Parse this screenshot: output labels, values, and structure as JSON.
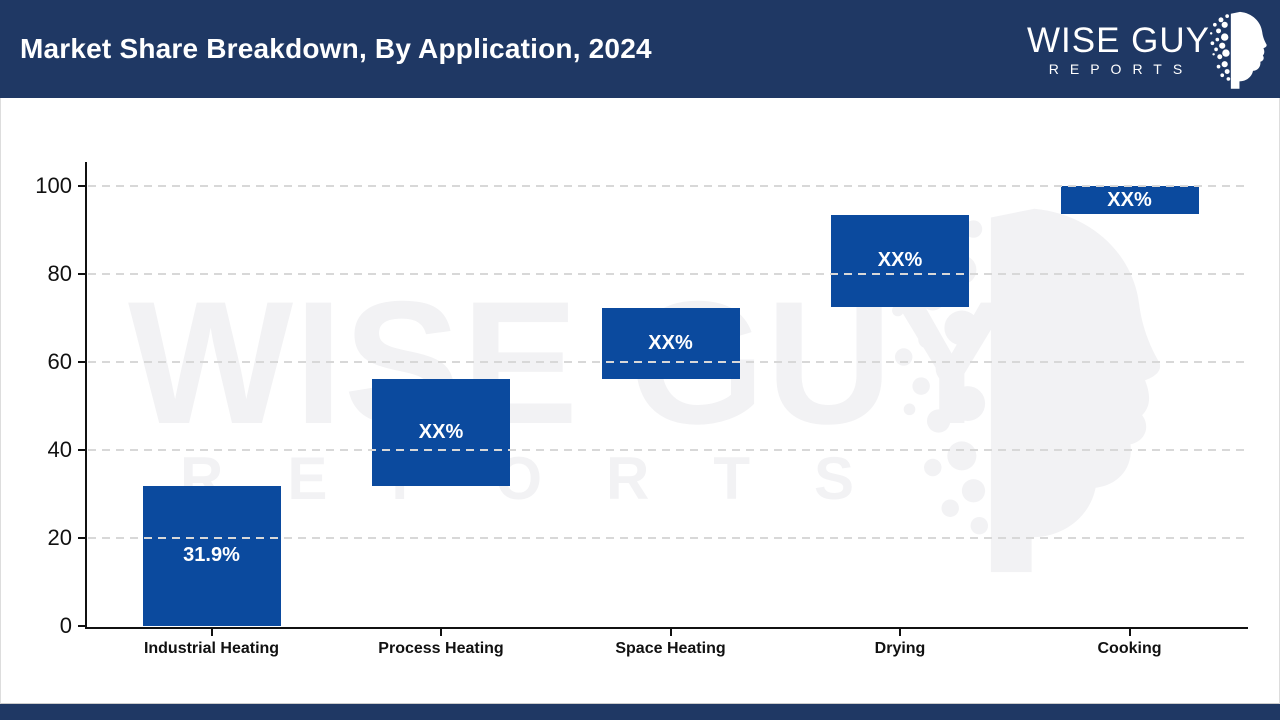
{
  "header": {
    "title": "Market Share Breakdown, By Application, 2024",
    "logo": {
      "line1": "WISE GUY",
      "line2": "REPORTS"
    }
  },
  "watermark": {
    "line1": "WISE GUY",
    "line2": "REPORTS"
  },
  "colors": {
    "header_bg": "#1f3864",
    "footer_bg": "#1f3864",
    "bar": "#0b4a9e",
    "bar_label": "#ffffff",
    "grid": "#d8d8d8",
    "axis": "#111111",
    "watermark": "#f2f2f4"
  },
  "chart_data": {
    "type": "bar",
    "subtype": "waterfall",
    "title": "Market Share Breakdown, By Application, 2024",
    "categories": [
      "Industrial Heating",
      "Process Heating",
      "Space Heating",
      "Drying",
      "Cooking"
    ],
    "segments": [
      {
        "category": "Industrial Heating",
        "start": 0,
        "end": 31.9,
        "label": "31.9%"
      },
      {
        "category": "Process Heating",
        "start": 31.9,
        "end": 56.1,
        "label": "XX%"
      },
      {
        "category": "Space Heating",
        "start": 56.1,
        "end": 72.3,
        "label": "XX%"
      },
      {
        "category": "Drying",
        "start": 72.6,
        "end": 93.4,
        "label": "XX%"
      },
      {
        "category": "Cooking",
        "start": 93.6,
        "end": 100,
        "label": "XX%"
      }
    ],
    "values": [
      31.9,
      24.2,
      16.2,
      20.8,
      6.4
    ],
    "bar_labels": [
      "31.9%",
      "XX%",
      "XX%",
      "XX%",
      "XX%"
    ],
    "xlabel": "",
    "ylabel": "",
    "ylim": [
      0,
      100
    ],
    "yticks": [
      0,
      20,
      40,
      60,
      80,
      100
    ],
    "grid": "horizontal-dashed",
    "legend": "none"
  }
}
